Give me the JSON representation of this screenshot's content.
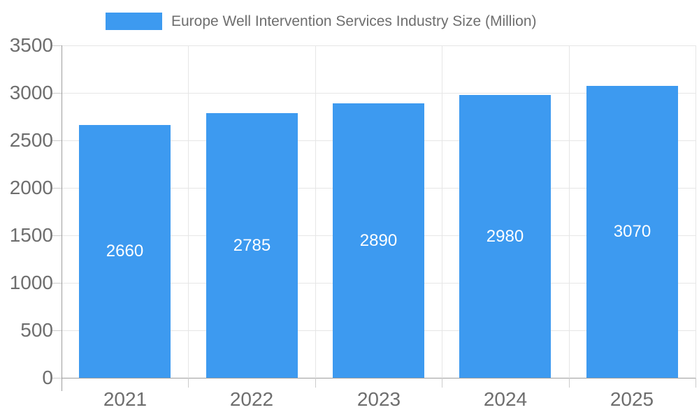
{
  "chart_data": {
    "type": "bar",
    "title": "Europe Well Intervention Services Industry Size (Million)",
    "legend": {
      "position": "top",
      "entries": [
        "Europe Well Intervention Services Industry Size (Million)"
      ]
    },
    "categories": [
      "2021",
      "2022",
      "2023",
      "2024",
      "2025"
    ],
    "series": [
      {
        "name": "Europe Well Intervention Services Industry Size (Million)",
        "values": [
          2660,
          2785,
          2890,
          2980,
          3070
        ]
      }
    ],
    "bar_value_labels": [
      "2660",
      "2785",
      "2890",
      "2980",
      "3070"
    ],
    "xlabel": "",
    "ylabel": "",
    "ylim": [
      0,
      3500
    ],
    "ytick_step": 500,
    "yticks": [
      3500,
      3000,
      2500,
      2000,
      1500,
      1000,
      500,
      0
    ],
    "grid": true,
    "colors": {
      "bar": "#3d9af0",
      "bar_label": "#ffffff",
      "axis_label": "#6e6e6e",
      "title": "#6e6e6e",
      "gridline": "#e6e6e6",
      "axis_line": "#9e9e9e",
      "tick": "#cccccc"
    }
  }
}
